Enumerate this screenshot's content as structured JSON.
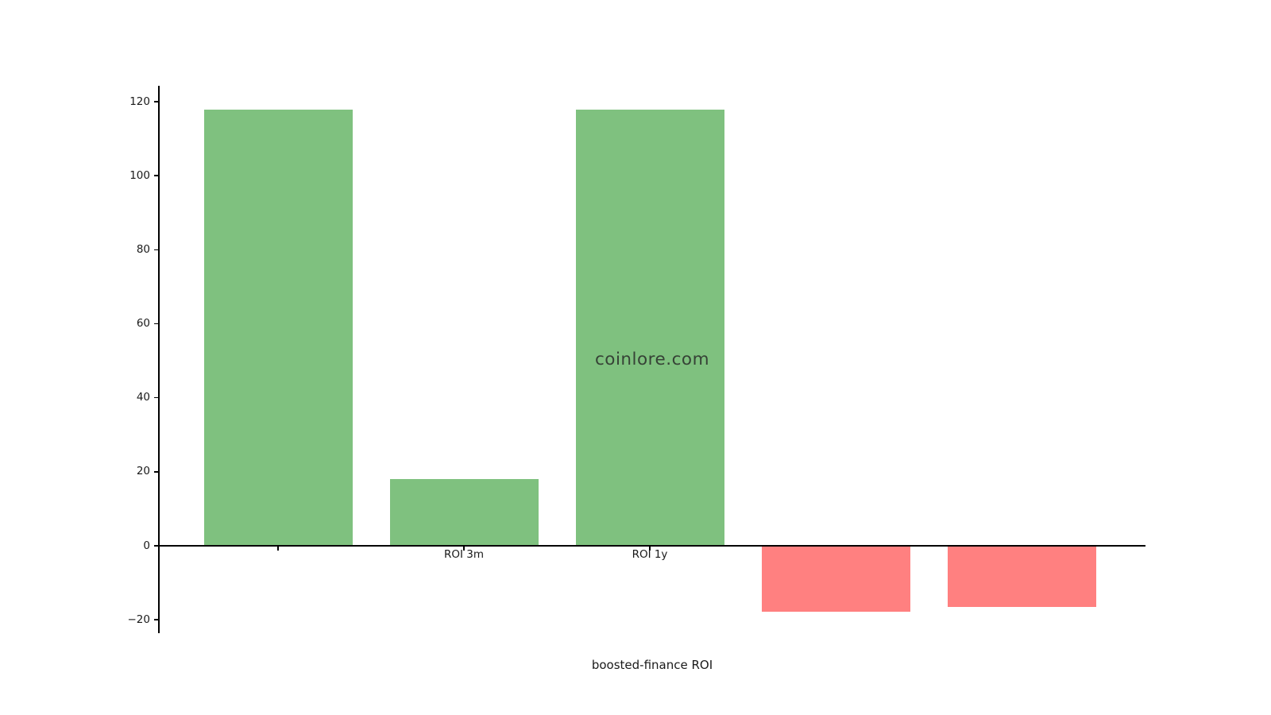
{
  "chart_data": {
    "type": "bar",
    "title": "boosted-finance ROI",
    "watermark": "coinlore.com",
    "categories": [
      "",
      "ROI 3m",
      "ROI 1y",
      "",
      ""
    ],
    "values": [
      117.9,
      18,
      117.9,
      -17.6,
      -16.3
    ],
    "yticks": [
      120,
      100,
      80,
      60,
      40,
      20,
      0,
      -20
    ],
    "ylim": [
      -23.5,
      124.5
    ],
    "xlabel": "",
    "ylabel": "",
    "grid": false,
    "legend": "none",
    "colors": {
      "positive": "#7fc17f",
      "negative": "#ff8080",
      "axis": "#000000",
      "tick_text": "#1a1a1a",
      "background": "#ffffff"
    }
  }
}
